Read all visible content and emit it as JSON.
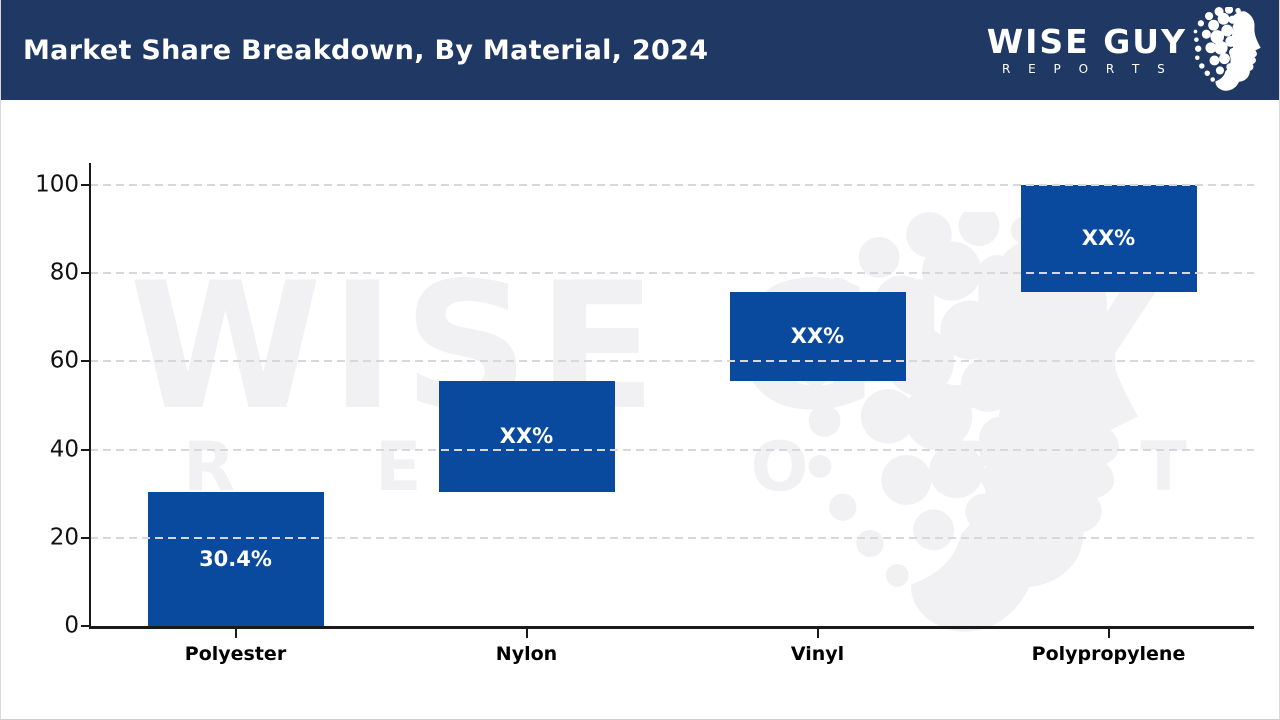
{
  "header": {
    "title": "Market Share Breakdown, By Material, 2024",
    "bg_color": "#1f3864",
    "logo": {
      "name": "WISE GUY REPORTS",
      "line1": "WISE GUY",
      "line2": "R E P O R T S",
      "face_icon": "head-profile-dots-icon",
      "color": "#ffffff"
    }
  },
  "watermark": {
    "line1": "WISE GUY",
    "line2": "R E P O R T S",
    "face_icon": "head-profile-dots-icon",
    "color": "#f1f1f4"
  },
  "chart_data": {
    "type": "bar",
    "subtype": "waterfall",
    "title": "Market Share Breakdown, By Material, 2024",
    "categories": [
      "Polyester",
      "Nylon",
      "Vinyl",
      "Polypropylene"
    ],
    "series": [
      {
        "name": "Market share (%)",
        "segments": [
          {
            "category": "Polyester",
            "start": 0,
            "end": 30.4,
            "label": "30.4%"
          },
          {
            "category": "Nylon",
            "start": 30.4,
            "end": 55.6,
            "label": "XX%"
          },
          {
            "category": "Vinyl",
            "start": 55.6,
            "end": 75.8,
            "label": "XX%"
          },
          {
            "category": "Polypropylene",
            "start": 75.8,
            "end": 100,
            "label": "XX%"
          }
        ]
      }
    ],
    "xlabel": "",
    "ylabel": "",
    "ylim": [
      0,
      100
    ],
    "yticks": [
      0,
      20,
      40,
      60,
      80,
      100
    ],
    "grid": "horizontal-dashed",
    "legend": "none",
    "bar_color": "#0a4a9e",
    "bar_label_color": "#ffffff",
    "axis_color": "#1a1a1a",
    "gridline_color": "#d8d8dc"
  }
}
